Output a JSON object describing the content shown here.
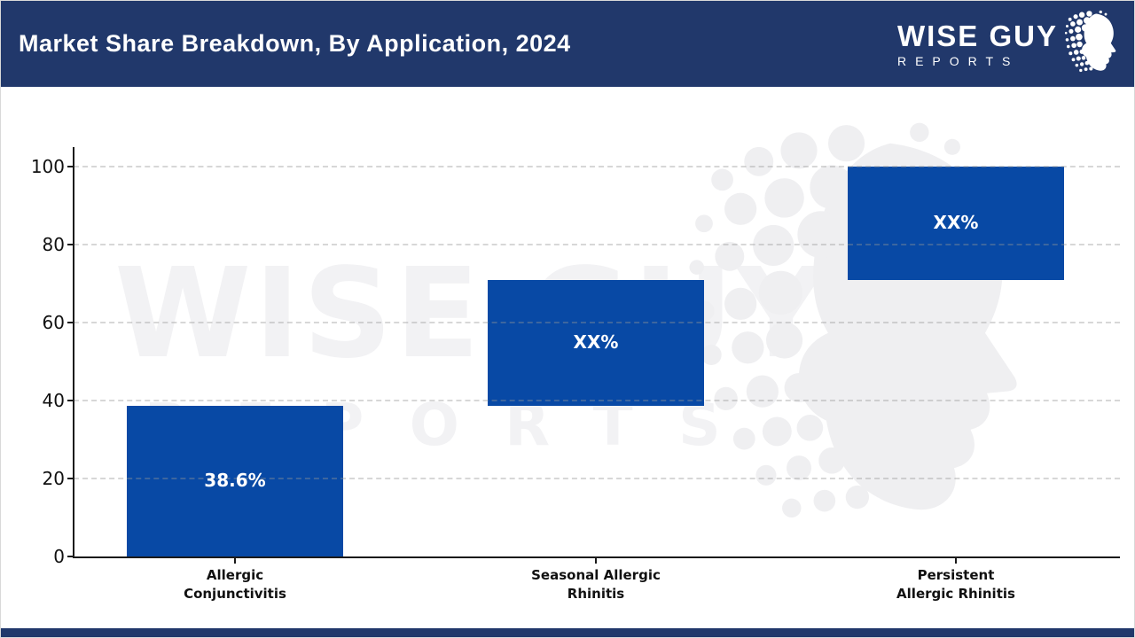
{
  "header": {
    "title": "Market Share Breakdown, By Application, 2024",
    "logo": {
      "line1": "WISE GUY",
      "line2": "REPORTS"
    }
  },
  "watermark": {
    "line1": "WISE GUY",
    "line2": "REPORTS"
  },
  "chart_data": {
    "type": "bar",
    "subtype": "floating-segment-waterfall",
    "title": "Market Share Breakdown, By Application, 2024",
    "categories": [
      "Allergic Conjunctivitis",
      "Seasonal Allergic Rhinitis",
      "Persistent Allergic Rhinitis"
    ],
    "category_lines": [
      [
        "Allergic",
        "Conjunctivitis"
      ],
      [
        "Seasonal Allergic",
        "Rhinitis"
      ],
      [
        "Persistent",
        "Allergic Rhinitis"
      ]
    ],
    "segments": [
      {
        "category": "Allergic Conjunctivitis",
        "start": 0,
        "end": 38.6,
        "label": "38.6%"
      },
      {
        "category": "Seasonal Allergic Rhinitis",
        "start": 38.6,
        "end": 71,
        "label": "XX%"
      },
      {
        "category": "Persistent Allergic Rhinitis",
        "start": 71,
        "end": 100,
        "label": "XX%"
      }
    ],
    "ylim": [
      0,
      100
    ],
    "yticks": [
      0,
      20,
      40,
      60,
      80,
      100
    ],
    "grid": "horizontal-dashed",
    "legend": "none",
    "bar_color": "#0849a5",
    "value_label_color": "#ffffff"
  },
  "colors": {
    "header_bg": "#21386b",
    "footer_bg": "#21386b",
    "bar": "#0849a5",
    "watermark": "#f2f2f4",
    "axis": "#1a1a1a"
  }
}
